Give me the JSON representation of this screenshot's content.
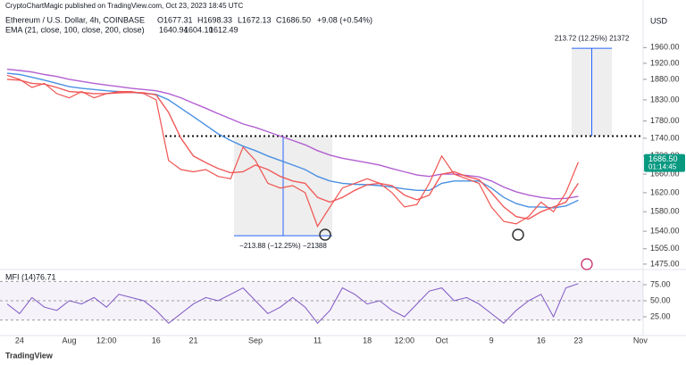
{
  "header": {
    "publisher": "CryptoChartMagic published on TradingView.com, Oct 23, 2023 18:45 UTC",
    "open": "O1677.31",
    "high": "H1698.33",
    "low": "L1672.13",
    "close": "C1686.50",
    "change": "+9.08 (+0.54%)",
    "ema_title": "EMA (21, close, 100, close, 200, close)",
    "ema_values": [
      "1640.94",
      "1604.10",
      "1612.49"
    ],
    "footer": "TradingView"
  },
  "chart_data": [
    {
      "type": "line",
      "title": "Ethereum / U.S. Dollar, 4h, COINBASE",
      "currency": "USD",
      "x": [
        null,
        "24",
        null,
        null,
        null,
        "Aug",
        null,
        null,
        "12:00",
        null,
        null,
        null,
        "16",
        null,
        null,
        "21",
        null,
        null,
        null,
        null,
        "Sep",
        null,
        null,
        null,
        null,
        "11",
        null,
        null,
        null,
        "18",
        null,
        null,
        "12:00",
        null,
        null,
        "Oct",
        null,
        null,
        null,
        "9",
        null,
        null,
        null,
        "16",
        null,
        null,
        "23",
        null,
        null,
        null,
        null,
        "Nov"
      ],
      "log_scale": true,
      "ylim": [
        1468,
        2050
      ],
      "yticks": [
        {
          "value": 1475,
          "label": "1475.00"
        },
        {
          "value": 1505,
          "label": "1505.00"
        },
        {
          "value": 1540,
          "label": "1540.00"
        },
        {
          "value": 1580,
          "label": "1580.00"
        },
        {
          "value": 1620,
          "label": "1620.00"
        },
        {
          "value": 1660,
          "label": "1660.00"
        },
        {
          "value": 1700,
          "label": "1700.00"
        },
        {
          "value": 1740,
          "label": "1740.00"
        },
        {
          "value": 1780,
          "label": "1780.00"
        },
        {
          "value": 1830,
          "label": "1830.00"
        },
        {
          "value": 1880,
          "label": "1880.00"
        },
        {
          "value": 1920,
          "label": "1920.00"
        },
        {
          "value": 1960,
          "label": "1960.00"
        }
      ],
      "series": [
        {
          "color": "#ef5350",
          "values": [
            1890,
            1880,
            1860,
            1870,
            1845,
            1835,
            1850,
            1835,
            1845,
            1850,
            1850,
            1845,
            1830,
            1690,
            1670,
            1665,
            1670,
            1655,
            1650,
            1720,
            1690,
            1640,
            1630,
            1635,
            1620,
            1550,
            1590,
            1630,
            1640,
            1650,
            1640,
            1620,
            1590,
            1595,
            1640,
            1700,
            1660,
            1650,
            1640,
            1590,
            1560,
            1555,
            1570,
            1600,
            1580,
            1620,
            1686.5,
            null,
            null,
            null,
            null,
            null
          ]
        },
        {
          "color": "#f15a5a",
          "values": [
            1880,
            1878,
            1870,
            1868,
            1860,
            1850,
            1848,
            1845,
            1845,
            1847,
            1848,
            1847,
            1842,
            1800,
            1740,
            1700,
            1685,
            1672,
            1663,
            1665,
            1680,
            1670,
            1655,
            1645,
            1640,
            1610,
            1600,
            1610,
            1625,
            1637,
            1640,
            1635,
            1615,
            1605,
            1615,
            1660,
            1665,
            1655,
            1648,
            1620,
            1590,
            1570,
            1565,
            1580,
            1590,
            1600,
            1640,
            null,
            null,
            null,
            null,
            null
          ]
        },
        {
          "color": "#4a90e2",
          "values": [
            1895,
            1892,
            1885,
            1878,
            1870,
            1862,
            1858,
            1855,
            1852,
            1850,
            1848,
            1846,
            1843,
            1830,
            1810,
            1790,
            1770,
            1750,
            1735,
            1722,
            1712,
            1700,
            1690,
            1680,
            1670,
            1655,
            1645,
            1640,
            1638,
            1637,
            1635,
            1632,
            1628,
            1625,
            1625,
            1640,
            1645,
            1645,
            1645,
            1630,
            1610,
            1597,
            1590,
            1590,
            1588,
            1592,
            1604,
            null,
            null,
            null,
            null,
            null
          ]
        },
        {
          "color": "#b25fd1",
          "values": [
            1905,
            1902,
            1898,
            1892,
            1887,
            1880,
            1875,
            1870,
            1866,
            1862,
            1858,
            1855,
            1852,
            1845,
            1835,
            1822,
            1810,
            1797,
            1785,
            1773,
            1765,
            1755,
            1745,
            1735,
            1725,
            1712,
            1702,
            1695,
            1690,
            1685,
            1680,
            1672,
            1665,
            1658,
            1655,
            1660,
            1660,
            1657,
            1654,
            1645,
            1632,
            1622,
            1615,
            1610,
            1607,
            1608,
            1612,
            null,
            null,
            null,
            null,
            null
          ]
        }
      ],
      "resistance": 1745,
      "measures": [
        {
          "label": "−213.88 (−12.25%) −21388",
          "from": 1745,
          "to": 1531
        },
        {
          "label": "213.72 (12.25%) 21372",
          "from": 1745,
          "to": 1958
        }
      ],
      "last_price": "1686.50",
      "countdown": "01:14:45"
    },
    {
      "type": "line",
      "title": "MFI (14)",
      "last_value": "76.71",
      "ylim": [
        0,
        100
      ],
      "band": [
        20,
        80
      ],
      "yticks": [
        {
          "value": 25,
          "label": "25.00"
        },
        {
          "value": 50,
          "label": "50.00"
        },
        {
          "value": 75,
          "label": "75.00"
        }
      ],
      "series": [
        {
          "color": "#7e57c2",
          "values": [
            45,
            30,
            55,
            40,
            35,
            50,
            45,
            55,
            40,
            60,
            55,
            50,
            35,
            15,
            30,
            45,
            55,
            50,
            60,
            70,
            50,
            30,
            40,
            55,
            40,
            15,
            35,
            70,
            60,
            45,
            50,
            35,
            25,
            45,
            65,
            70,
            50,
            55,
            45,
            30,
            15,
            35,
            50,
            60,
            25,
            70,
            76.71,
            null,
            null,
            null,
            null,
            null
          ]
        }
      ]
    }
  ]
}
